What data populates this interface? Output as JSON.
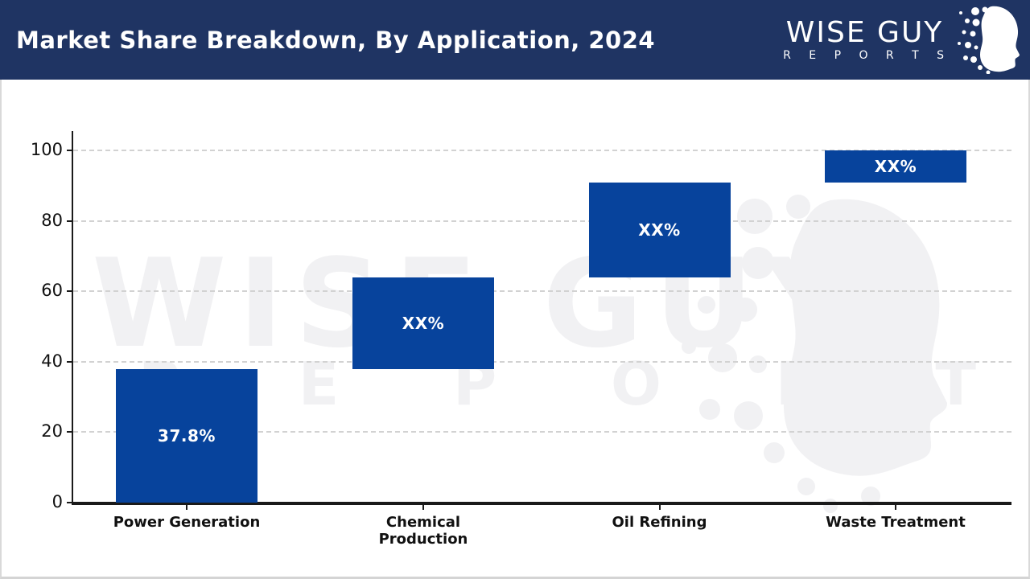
{
  "header": {
    "title": "Market Share Breakdown, By Application, 2024",
    "logo": {
      "brand_line1": "WISE GUY",
      "brand_line2": "R E P O R T S"
    }
  },
  "watermark": {
    "line1": "WISE GUY",
    "line2": "R E P O R T S"
  },
  "colors": {
    "header_bg": "#1f3463",
    "bar_fill": "#07439c",
    "grid_line": "#d2d2d2",
    "axis": "#1a1a1a",
    "watermark_gray": "#f1f1f3",
    "text_on_bar": "#ffffff"
  },
  "chart_data": {
    "type": "bar",
    "subtype": "waterfall",
    "title": "Market Share Breakdown, By Application, 2024",
    "xlabel": "",
    "ylabel": "",
    "ylim": [
      0,
      100
    ],
    "yticks": [
      0,
      20,
      40,
      60,
      80,
      100
    ],
    "grid": "horizontal-dashed",
    "legend": "none",
    "categories": [
      "Power Generation",
      "Chemical\nProduction",
      "Oil Refining",
      "Waste Treatment"
    ],
    "segments": [
      {
        "category": "Power Generation",
        "start": 0,
        "end": 37.8,
        "label": "37.8%"
      },
      {
        "category": "Chemical\nProduction",
        "start": 37.8,
        "end": 63.9,
        "label": "XX%"
      },
      {
        "category": "Oil Refining",
        "start": 63.9,
        "end": 90.9,
        "label": "XX%"
      },
      {
        "category": "Waste Treatment",
        "start": 90.9,
        "end": 100,
        "label": "XX%"
      }
    ]
  }
}
